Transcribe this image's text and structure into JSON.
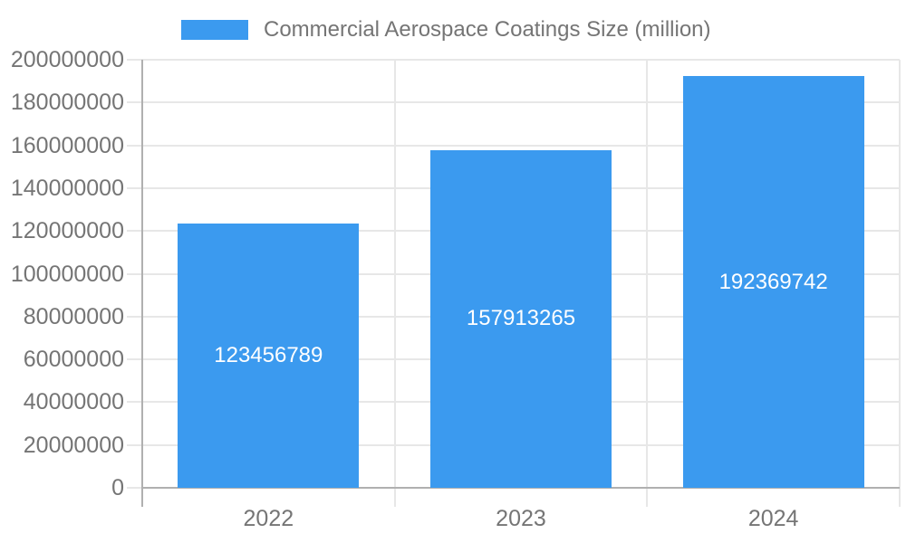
{
  "chart_data": {
    "type": "bar",
    "title": "Commercial Aerospace Coatings Size (million)",
    "categories": [
      "2022",
      "2023",
      "2024"
    ],
    "series": [
      {
        "name": "Commercial Aerospace Coatings Size (million)",
        "values": [
          123456789,
          157913265,
          192369742
        ],
        "color": "#3B9AEF"
      }
    ],
    "bar_labels": [
      "123456789",
      "157913265",
      "192369742"
    ],
    "xlabel": "",
    "ylabel": "",
    "ylim": [
      0,
      200000000
    ],
    "ytick_step": 20000000,
    "yticks": [
      0,
      20000000,
      40000000,
      60000000,
      80000000,
      100000000,
      120000000,
      140000000,
      160000000,
      180000000,
      200000000
    ],
    "grid": true,
    "legend_position": "top"
  },
  "colors": {
    "bar": "#3B9AEF",
    "gridline": "#e7e7e7",
    "axis_line": "#b0b0b0",
    "tick_text": "#757575",
    "legend_text": "#757575",
    "bar_label_text": "#ffffff",
    "background": "#ffffff"
  }
}
